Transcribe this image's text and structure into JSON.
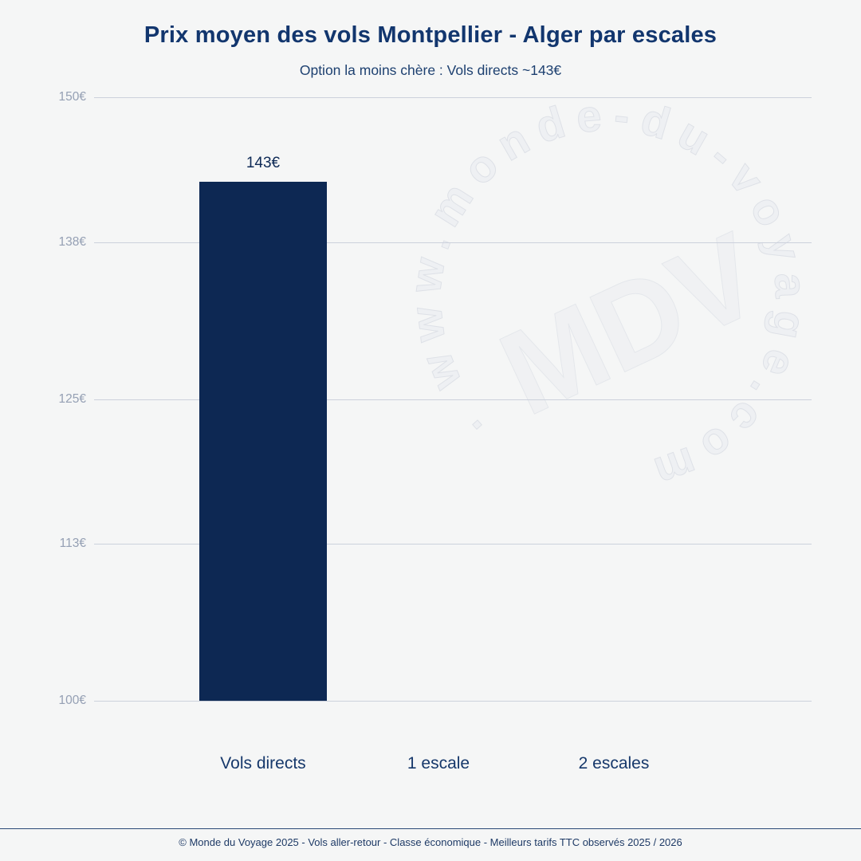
{
  "header": {
    "title": "Prix moyen des vols Montpellier - Alger par escales",
    "subtitle": "Option la moins chère : Vols directs ~143€"
  },
  "chart_data": {
    "type": "bar",
    "title": "Prix moyen des vols Montpellier - Alger par escales",
    "subtitle": "Option la moins chère : Vols directs ~143€",
    "categories": [
      "Vols directs",
      "1 escale",
      "2 escales"
    ],
    "values": [
      143,
      null,
      null
    ],
    "value_labels": [
      "143€",
      "",
      ""
    ],
    "xlabel": "",
    "ylabel": "",
    "ylim": [
      100,
      150
    ],
    "yticks": [
      150,
      138,
      125,
      113,
      100
    ],
    "ytick_labels": [
      "150€",
      "138€",
      "125€",
      "113€",
      "100€"
    ],
    "grid": true,
    "legend": false,
    "bar_color": "#0d2853"
  },
  "watermark": {
    "ring_text": "· www.monde-du-voyage.com",
    "center_text": "MDV"
  },
  "footer": {
    "text": "© Monde du Voyage 2025 - Vols aller-retour - Classe économique - Meilleurs tarifs TTC observés 2025 / 2026"
  },
  "colors": {
    "background": "#f5f6f6",
    "title": "#12366e",
    "subtitle": "#1d4070",
    "bar": "#0d2853",
    "tick_label": "#95a0b4",
    "gridline": "#ccd1dc",
    "category_label": "#16386b",
    "footer_text": "#1e3a66"
  }
}
